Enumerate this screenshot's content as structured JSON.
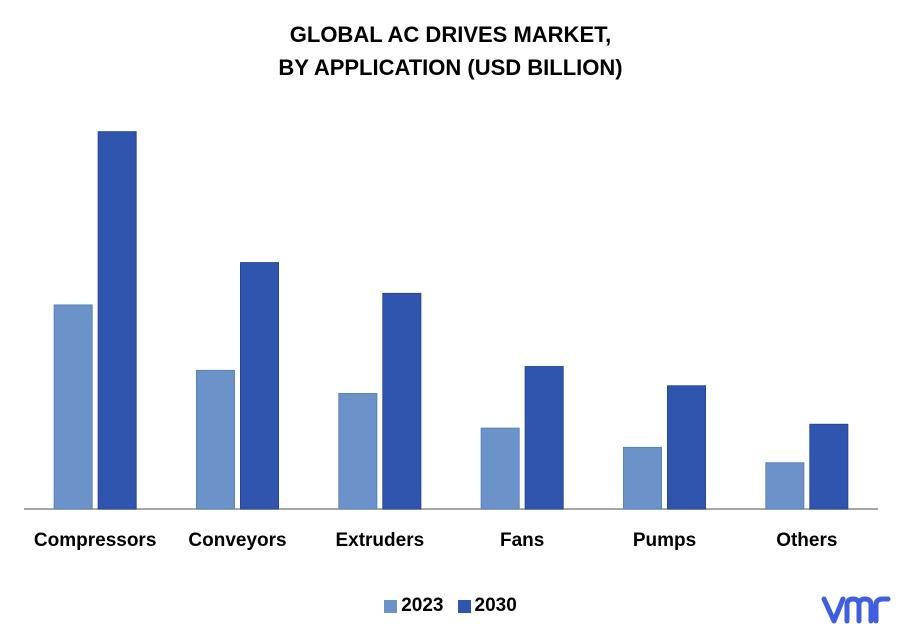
{
  "title_line1": "GLOBAL AC DRIVES MARKET,",
  "title_line2": "BY APPLICATION (USD BILLION)",
  "colors": {
    "s2023": "#6b93c9",
    "s2030": "#2f55ae",
    "axis": "#8c8c8c",
    "logo": "#3f5fe0"
  },
  "chart_data": {
    "type": "bar",
    "title": "GLOBAL AC DRIVES MARKET, BY APPLICATION (USD BILLION)",
    "categories": [
      "Compressors",
      "Conveyors",
      "Extruders",
      "Fans",
      "Pumps",
      "Others"
    ],
    "series": [
      {
        "name": "2023",
        "values": [
          5.3,
          3.6,
          3.0,
          2.1,
          1.6,
          1.2
        ]
      },
      {
        "name": "2030",
        "values": [
          9.8,
          6.4,
          5.6,
          3.7,
          3.2,
          2.2
        ]
      }
    ],
    "ylim": [
      0,
      10
    ],
    "grid": false,
    "legend_position": "bottom"
  }
}
